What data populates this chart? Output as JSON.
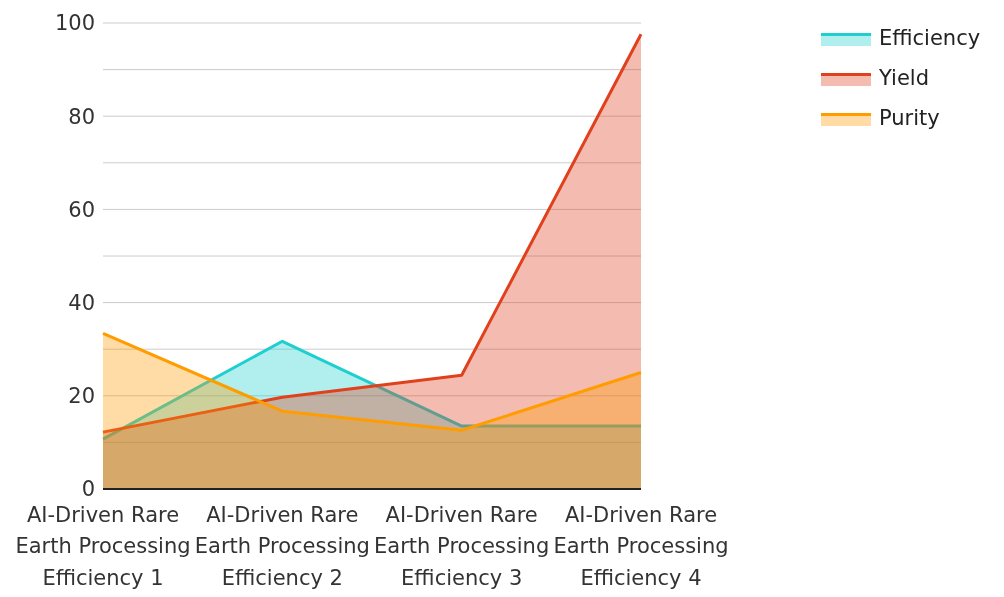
{
  "chart_data": {
    "type": "area",
    "categories": [
      "AI-Driven Rare Earth Processing Efficiency 1",
      "AI-Driven Rare Earth Processing Efficiency 2",
      "AI-Driven Rare Earth Processing Efficiency 3",
      "AI-Driven Rare Earth Processing Efficiency 4"
    ],
    "series": [
      {
        "name": "Efficiency",
        "color": "#1fcfcf",
        "values": [
          10.7,
          31.7,
          13.5,
          13.5
        ]
      },
      {
        "name": "Yield",
        "color": "#e0401c",
        "values": [
          12.2,
          19.7,
          24.4,
          97.6
        ]
      },
      {
        "name": "Purity",
        "color": "#ff9c00",
        "values": [
          33.4,
          16.7,
          12.6,
          25
        ]
      }
    ],
    "ylim": [
      0,
      100
    ],
    "yticks": [
      0,
      {
        "value": 10,
        "label": null
      },
      20,
      {
        "value": 30,
        "label": null
      },
      40,
      {
        "value": 50,
        "label": null
      },
      60,
      {
        "value": 70,
        "label": null
      },
      80,
      {
        "value": 90,
        "label": null
      },
      100
    ],
    "grid": "y",
    "legend": "top right",
    "marker": "none"
  }
}
